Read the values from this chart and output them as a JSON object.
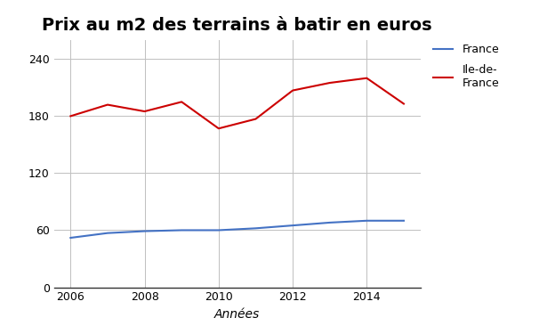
{
  "title": "Prix au m2 des terrains à batir en euros",
  "xlabel": "Années",
  "ylabel": "",
  "years": [
    2006,
    2007,
    2008,
    2009,
    2010,
    2011,
    2012,
    2013,
    2014,
    2015
  ],
  "france": [
    52,
    57,
    59,
    60,
    60,
    62,
    65,
    68,
    70,
    70
  ],
  "idf": [
    180,
    192,
    185,
    195,
    167,
    177,
    207,
    215,
    220,
    193
  ],
  "france_color": "#4472C4",
  "idf_color": "#CC0000",
  "france_label": "France",
  "idf_label": "Ile-de-\nFrance",
  "ylim": [
    0,
    260
  ],
  "yticks": [
    0,
    60,
    120,
    180,
    240
  ],
  "xticks": [
    2006,
    2008,
    2010,
    2012,
    2014
  ],
  "background_color": "#ffffff",
  "grid_color": "#c0c0c0",
  "title_fontsize": 14,
  "label_fontsize": 10,
  "tick_fontsize": 9,
  "legend_fontsize": 9,
  "line_width": 1.5
}
